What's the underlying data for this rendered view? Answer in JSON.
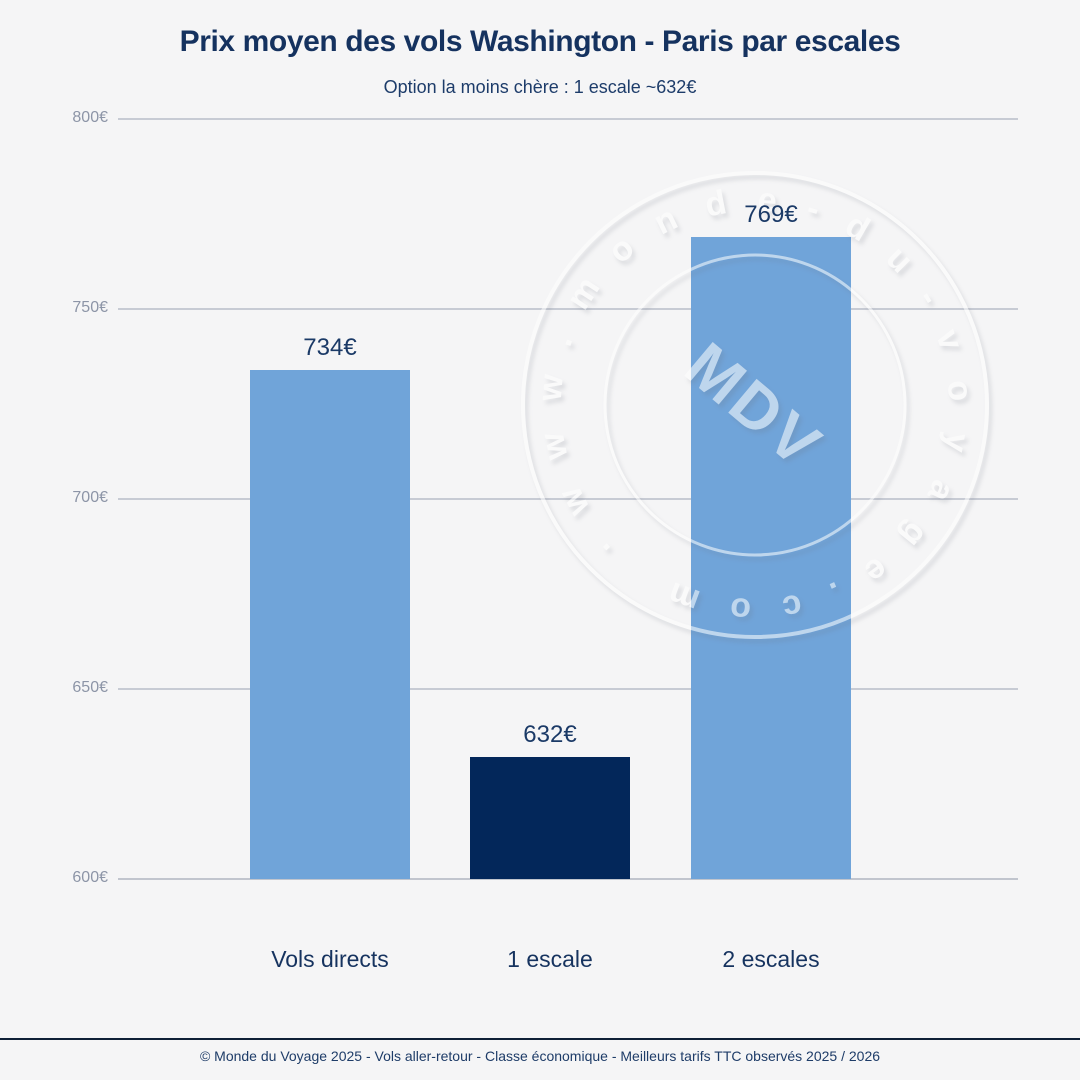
{
  "header": {
    "title": "Prix moyen des vols Washington - Paris par escales",
    "subtitle": "Option la moins chère : 1 escale ~632€"
  },
  "chart_data": {
    "type": "bar",
    "title": "Prix moyen des vols Washington - Paris par escales",
    "subtitle": "Option la moins chère : 1 escale ~632€",
    "categories": [
      "Vols directs",
      "1 escale",
      "2 escales"
    ],
    "values": [
      734,
      632,
      769
    ],
    "value_labels": [
      "734€",
      "632€",
      "769€"
    ],
    "unit": "€",
    "xlabel": "",
    "ylabel": "",
    "ylim": [
      600,
      800
    ],
    "yticks": [
      800,
      750,
      700,
      650,
      600
    ],
    "ytick_labels": [
      "800€",
      "750€",
      "700€",
      "650€",
      "600€"
    ],
    "grid": true,
    "legend": false,
    "bar_colors": [
      "#70a4d9",
      "#03275a",
      "#70a4d9"
    ],
    "highlight_color": "#03275a",
    "default_bar_color": "#70a4d9"
  },
  "watermark": {
    "ring_text": "www.monde-du-voyage.com ·",
    "center_text": "MDV"
  },
  "footer": {
    "text": "© Monde du Voyage 2025 - Vols aller-retour - Classe économique - Meilleurs tarifs TTC observés 2025 / 2026"
  },
  "colors": {
    "background": "#f5f5f6",
    "title_text": "#15325f",
    "axis_label_text": "#8d95a7",
    "category_text": "#16335f",
    "gridline": "#c7cbd4",
    "footer_line": "#0e2036",
    "bar_light_blue": "#70a4d9",
    "bar_dark_navy": "#03275a"
  }
}
